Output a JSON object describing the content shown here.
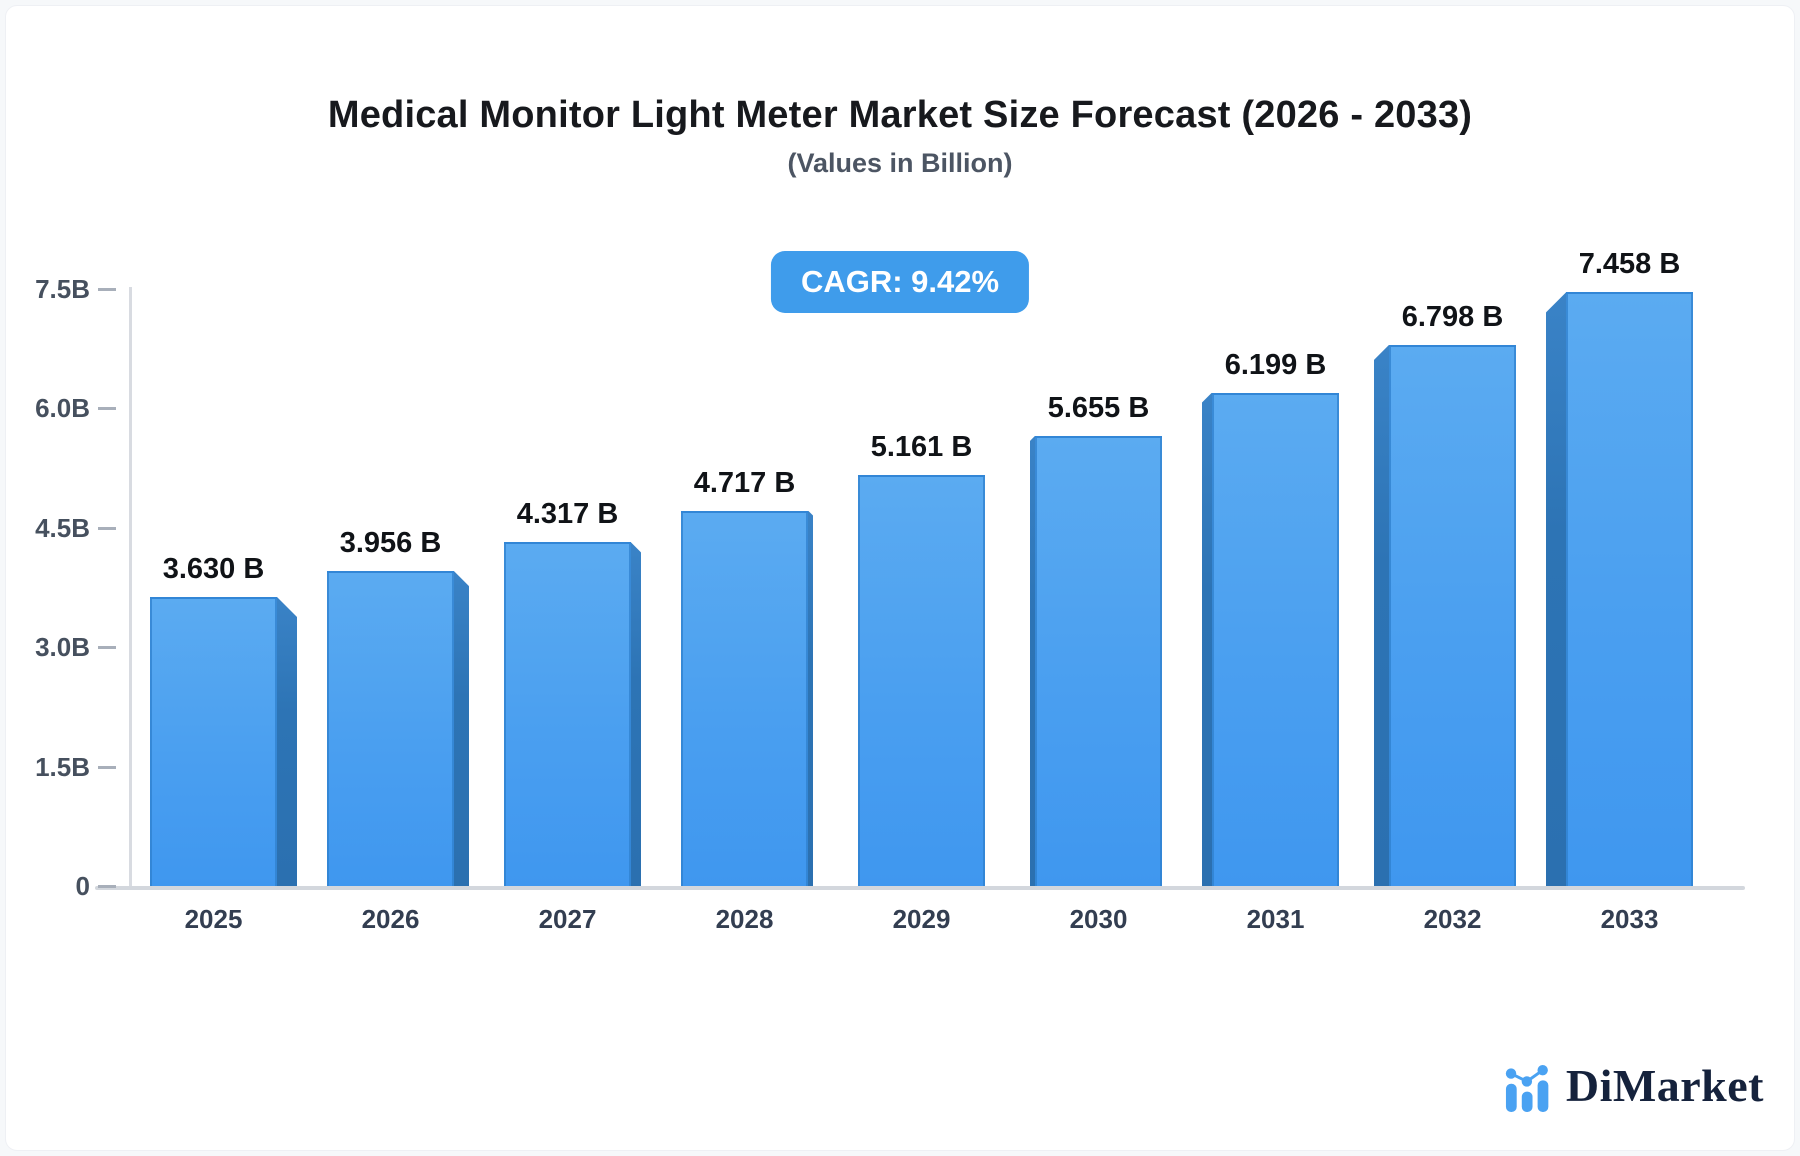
{
  "header": {
    "title": "Medical Monitor Light Meter Market Size Forecast (2026 - 2033)",
    "subtitle": "(Values in Billion)"
  },
  "badge": {
    "label": "CAGR: 9.42%",
    "background": "#3f9ceb",
    "text_color": "#ffffff"
  },
  "chart_data": {
    "type": "bar",
    "title": "Medical Monitor Light Meter Market Size Forecast (2026 - 2033)",
    "subtitle": "(Values in Billion)",
    "categories": [
      "2025",
      "2026",
      "2027",
      "2028",
      "2029",
      "2030",
      "2031",
      "2032",
      "2033"
    ],
    "values": [
      3.63,
      3.956,
      4.317,
      4.717,
      5.161,
      5.655,
      6.199,
      6.798,
      7.458
    ],
    "value_labels": [
      "3.630 B",
      "3.956 B",
      "4.317 B",
      "4.717 B",
      "5.161 B",
      "5.655 B",
      "6.199 B",
      "6.798 B",
      "7.458 B"
    ],
    "xlabel": "",
    "ylabel": "",
    "ylim": [
      0,
      7.5
    ],
    "yticks": [
      {
        "value": 0,
        "label": "0"
      },
      {
        "value": 1.5,
        "label": "1.5B"
      },
      {
        "value": 3.0,
        "label": "3.0B"
      },
      {
        "value": 4.5,
        "label": "4.5B"
      },
      {
        "value": 6.0,
        "label": "6.0B"
      },
      {
        "value": 7.5,
        "label": "7.5B"
      }
    ],
    "grid": false,
    "legend": false,
    "bar_face_color_top": "#5babf1",
    "bar_face_color_bottom": "#3f97ef",
    "bar_side_color": "#2d74b5",
    "style": "3d-center-perspective"
  },
  "logo": {
    "text": "DiMarket",
    "icon": "bar-chart-logo-icon",
    "icon_color": "#4aa2f2",
    "text_color": "#15223c"
  }
}
